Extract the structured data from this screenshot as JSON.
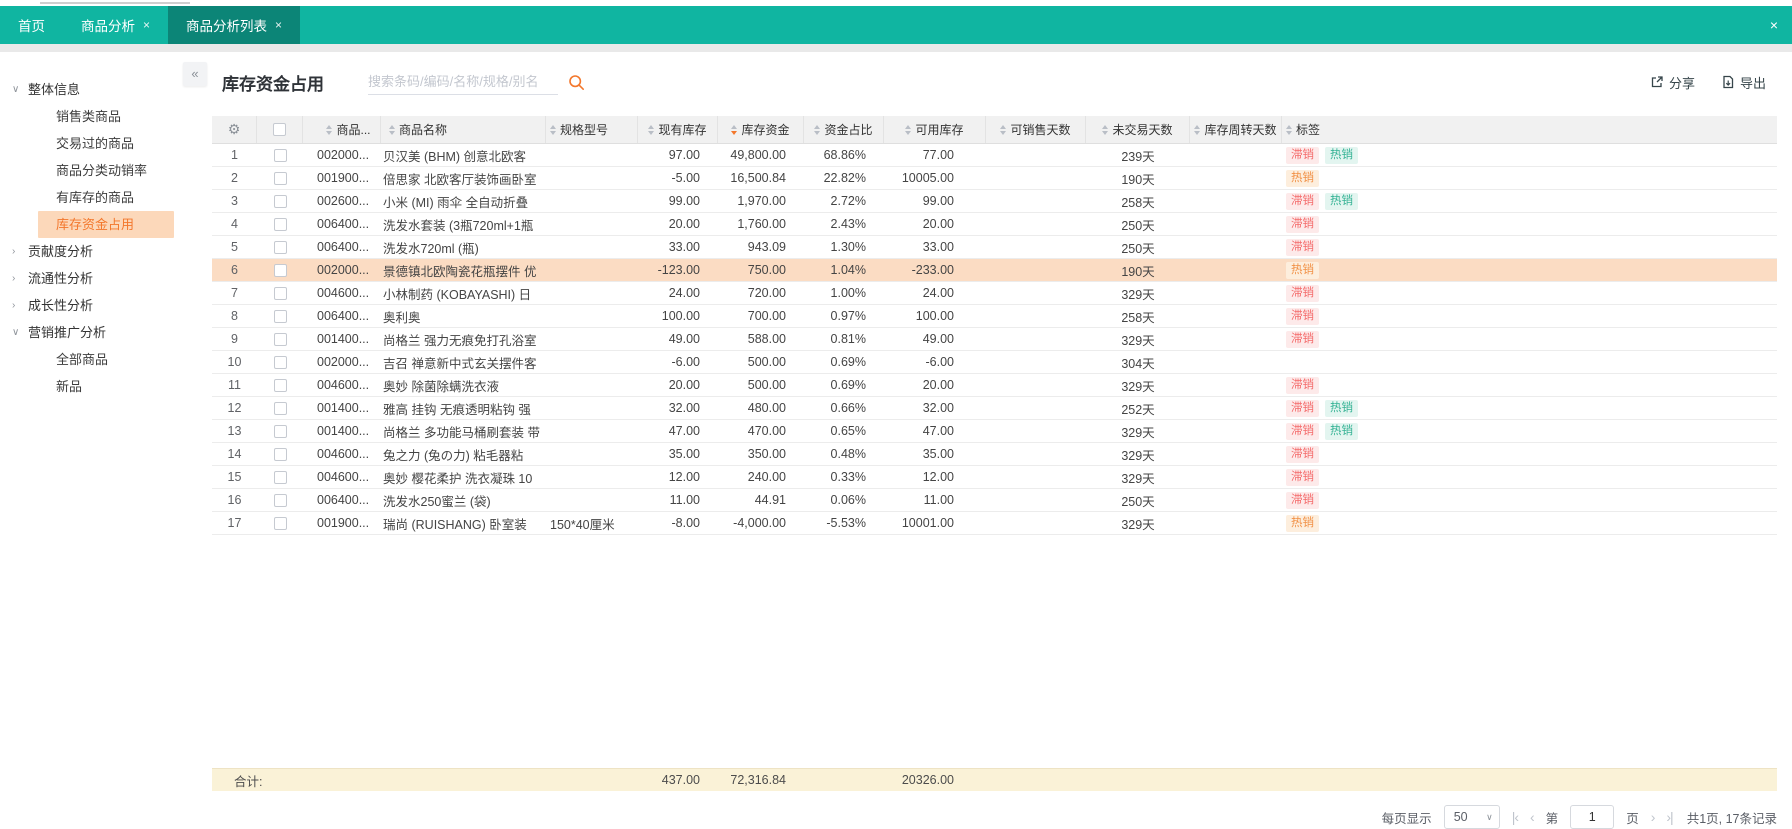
{
  "topbar": {
    "tabs": [
      {
        "label": "首页",
        "closable": false,
        "active": false
      },
      {
        "label": "商品分析",
        "closable": true,
        "active": false
      },
      {
        "label": "商品分析列表",
        "closable": true,
        "active": true
      }
    ],
    "close_label": "×"
  },
  "sidebar": {
    "collapse_icon": "«",
    "items": [
      {
        "label": "整体信息",
        "level": 0,
        "state": "expanded"
      },
      {
        "label": "销售类商品",
        "level": 1
      },
      {
        "label": "交易过的商品",
        "level": 1
      },
      {
        "label": "商品分类动销率",
        "level": 1
      },
      {
        "label": "有库存的商品",
        "level": 1
      },
      {
        "label": "库存资金占用",
        "level": 1,
        "selected": true
      },
      {
        "label": "贡献度分析",
        "level": 0,
        "state": "collapsed"
      },
      {
        "label": "流通性分析",
        "level": 0,
        "state": "collapsed"
      },
      {
        "label": "成长性分析",
        "level": 0,
        "state": "collapsed"
      },
      {
        "label": "营销推广分析",
        "level": 0,
        "state": "expanded"
      },
      {
        "label": "全部商品",
        "level": 1
      },
      {
        "label": "新品",
        "level": 1
      }
    ]
  },
  "header": {
    "title": "库存资金占用",
    "search_placeholder": "搜索条码/编码/名称/规格/别名",
    "share_label": "分享",
    "export_label": "导出"
  },
  "table": {
    "settings_icon": "⚙",
    "columns": [
      {
        "key": "code",
        "label": "商品..."
      },
      {
        "key": "name",
        "label": "商品名称"
      },
      {
        "key": "spec",
        "label": "规格型号"
      },
      {
        "key": "stock",
        "label": "现有库存"
      },
      {
        "key": "fund",
        "label": "库存资金",
        "sorted": "desc"
      },
      {
        "key": "ratio",
        "label": "资金占比"
      },
      {
        "key": "avail",
        "label": "可用库存"
      },
      {
        "key": "sales_days",
        "label": "可销售天数"
      },
      {
        "key": "no_trade_days",
        "label": "未交易天数"
      },
      {
        "key": "turnover_days",
        "label": "库存周转天数"
      },
      {
        "key": "tags",
        "label": "标签"
      }
    ],
    "rows": [
      {
        "num": "1",
        "code": "002000...",
        "name": "贝汉美 (BHM) 创意北欧客",
        "spec": "",
        "stock": "97.00",
        "fund": "49,800.00",
        "ratio": "68.86%",
        "avail": "77.00",
        "sales_days": "",
        "no_trade_days": "239天",
        "turnover_days": "",
        "tags": [
          {
            "text": "滞销",
            "type": "stale"
          },
          {
            "text": "热销",
            "type": "hot"
          }
        ],
        "highlighted": false
      },
      {
        "num": "2",
        "code": "001900...",
        "name": "倍思家 北欧客厅装饰画卧室",
        "spec": "",
        "stock": "-5.00",
        "fund": "16,500.84",
        "ratio": "22.82%",
        "avail": "10005.00",
        "sales_days": "",
        "no_trade_days": "190天",
        "turnover_days": "",
        "tags": [
          {
            "text": "热销",
            "type": "hot-warm"
          }
        ],
        "highlighted": false
      },
      {
        "num": "3",
        "code": "002600...",
        "name": "小米 (MI) 雨伞 全自动折叠",
        "spec": "",
        "stock": "99.00",
        "fund": "1,970.00",
        "ratio": "2.72%",
        "avail": "99.00",
        "sales_days": "",
        "no_trade_days": "258天",
        "turnover_days": "",
        "tags": [
          {
            "text": "滞销",
            "type": "stale"
          },
          {
            "text": "热销",
            "type": "hot"
          }
        ],
        "highlighted": false
      },
      {
        "num": "4",
        "code": "006400...",
        "name": "洗发水套装 (3瓶720ml+1瓶",
        "spec": "",
        "stock": "20.00",
        "fund": "1,760.00",
        "ratio": "2.43%",
        "avail": "20.00",
        "sales_days": "",
        "no_trade_days": "250天",
        "turnover_days": "",
        "tags": [
          {
            "text": "滞销",
            "type": "stale"
          }
        ],
        "highlighted": false
      },
      {
        "num": "5",
        "code": "006400...",
        "name": "洗发水720ml (瓶)",
        "spec": "",
        "stock": "33.00",
        "fund": "943.09",
        "ratio": "1.30%",
        "avail": "33.00",
        "sales_days": "",
        "no_trade_days": "250天",
        "turnover_days": "",
        "tags": [
          {
            "text": "滞销",
            "type": "stale"
          }
        ],
        "highlighted": false
      },
      {
        "num": "6",
        "code": "002000...",
        "name": "景德镇北欧陶瓷花瓶摆件 优",
        "spec": "",
        "stock": "-123.00",
        "fund": "750.00",
        "ratio": "1.04%",
        "avail": "-233.00",
        "sales_days": "",
        "no_trade_days": "190天",
        "turnover_days": "",
        "tags": [
          {
            "text": "热销",
            "type": "hot-warm"
          }
        ],
        "highlighted": true
      },
      {
        "num": "7",
        "code": "004600...",
        "name": "小林制药 (KOBAYASHI) 日",
        "spec": "",
        "stock": "24.00",
        "fund": "720.00",
        "ratio": "1.00%",
        "avail": "24.00",
        "sales_days": "",
        "no_trade_days": "329天",
        "turnover_days": "",
        "tags": [
          {
            "text": "滞销",
            "type": "stale"
          }
        ],
        "highlighted": false
      },
      {
        "num": "8",
        "code": "006400...",
        "name": "奥利奥",
        "spec": "",
        "stock": "100.00",
        "fund": "700.00",
        "ratio": "0.97%",
        "avail": "100.00",
        "sales_days": "",
        "no_trade_days": "258天",
        "turnover_days": "",
        "tags": [
          {
            "text": "滞销",
            "type": "stale"
          }
        ],
        "highlighted": false
      },
      {
        "num": "9",
        "code": "001400...",
        "name": "尚格兰 强力无痕免打孔浴室",
        "spec": "",
        "stock": "49.00",
        "fund": "588.00",
        "ratio": "0.81%",
        "avail": "49.00",
        "sales_days": "",
        "no_trade_days": "329天",
        "turnover_days": "",
        "tags": [
          {
            "text": "滞销",
            "type": "stale"
          }
        ],
        "highlighted": false
      },
      {
        "num": "10",
        "code": "002000...",
        "name": "吉召 禅意新中式玄关摆件客",
        "spec": "",
        "stock": "-6.00",
        "fund": "500.00",
        "ratio": "0.69%",
        "avail": "-6.00",
        "sales_days": "",
        "no_trade_days": "304天",
        "turnover_days": "",
        "tags": [],
        "highlighted": false
      },
      {
        "num": "11",
        "code": "004600...",
        "name": "奥妙 除菌除螨洗衣液",
        "spec": "",
        "stock": "20.00",
        "fund": "500.00",
        "ratio": "0.69%",
        "avail": "20.00",
        "sales_days": "",
        "no_trade_days": "329天",
        "turnover_days": "",
        "tags": [
          {
            "text": "滞销",
            "type": "stale"
          }
        ],
        "highlighted": false
      },
      {
        "num": "12",
        "code": "001400...",
        "name": "雅高 挂钩 无痕透明粘钩 强",
        "spec": "",
        "stock": "32.00",
        "fund": "480.00",
        "ratio": "0.66%",
        "avail": "32.00",
        "sales_days": "",
        "no_trade_days": "252天",
        "turnover_days": "",
        "tags": [
          {
            "text": "滞销",
            "type": "stale"
          },
          {
            "text": "热销",
            "type": "hot"
          }
        ],
        "highlighted": false
      },
      {
        "num": "13",
        "code": "001400...",
        "name": "尚格兰 多功能马桶刷套装 带",
        "spec": "",
        "stock": "47.00",
        "fund": "470.00",
        "ratio": "0.65%",
        "avail": "47.00",
        "sales_days": "",
        "no_trade_days": "329天",
        "turnover_days": "",
        "tags": [
          {
            "text": "滞销",
            "type": "stale"
          },
          {
            "text": "热销",
            "type": "hot"
          }
        ],
        "highlighted": false
      },
      {
        "num": "14",
        "code": "004600...",
        "name": "兔之力 (兔の力) 粘毛器粘",
        "spec": "",
        "stock": "35.00",
        "fund": "350.00",
        "ratio": "0.48%",
        "avail": "35.00",
        "sales_days": "",
        "no_trade_days": "329天",
        "turnover_days": "",
        "tags": [
          {
            "text": "滞销",
            "type": "stale"
          }
        ],
        "highlighted": false
      },
      {
        "num": "15",
        "code": "004600...",
        "name": "奥妙 樱花柔护 洗衣凝珠 10",
        "spec": "",
        "stock": "12.00",
        "fund": "240.00",
        "ratio": "0.33%",
        "avail": "12.00",
        "sales_days": "",
        "no_trade_days": "329天",
        "turnover_days": "",
        "tags": [
          {
            "text": "滞销",
            "type": "stale"
          }
        ],
        "highlighted": false
      },
      {
        "num": "16",
        "code": "006400...",
        "name": "洗发水250蜜兰 (袋)",
        "spec": "",
        "stock": "11.00",
        "fund": "44.91",
        "ratio": "0.06%",
        "avail": "11.00",
        "sales_days": "",
        "no_trade_days": "250天",
        "turnover_days": "",
        "tags": [
          {
            "text": "滞销",
            "type": "stale"
          }
        ],
        "highlighted": false
      },
      {
        "num": "17",
        "code": "001900...",
        "name": "瑞尚 (RUISHANG) 卧室装",
        "spec": "150*40厘米",
        "stock": "-8.00",
        "fund": "-4,000.00",
        "ratio": "-5.53%",
        "avail": "10001.00",
        "sales_days": "",
        "no_trade_days": "329天",
        "turnover_days": "",
        "tags": [
          {
            "text": "热销",
            "type": "hot-warm"
          }
        ],
        "highlighted": false
      }
    ]
  },
  "summary": {
    "label": "合计:",
    "stock_total": "437.00",
    "fund_total": "72,316.84",
    "avail_total": "20326.00"
  },
  "pagination": {
    "per_page_label": "每页显示",
    "per_page_value": "50",
    "first_icon": "|‹",
    "prev_icon": "‹",
    "page_prefix": "第",
    "page_value": "1",
    "page_suffix": "页",
    "next_icon": "›",
    "last_icon": "›|",
    "total_text": "共1页, 17条记录"
  },
  "colors": {
    "accent_teal": "#10b5a1",
    "active_tab_teal": "#0c8577",
    "selected_nav_bg": "#fcd8ba",
    "selected_nav_text": "#f3772c",
    "row_highlight_bg": "#fbdcc3",
    "tag_stale_text": "#f46a6a",
    "tag_stale_bg": "#fdeaea",
    "tag_hot_text": "#34b294",
    "tag_hot_bg": "#e3f5f0",
    "tag_hot_warm_text": "#f19045",
    "tag_hot_warm_bg": "#fdeedd",
    "summary_row_bg": "#faf2d7",
    "sort_active_arrow": "#f3772c"
  }
}
